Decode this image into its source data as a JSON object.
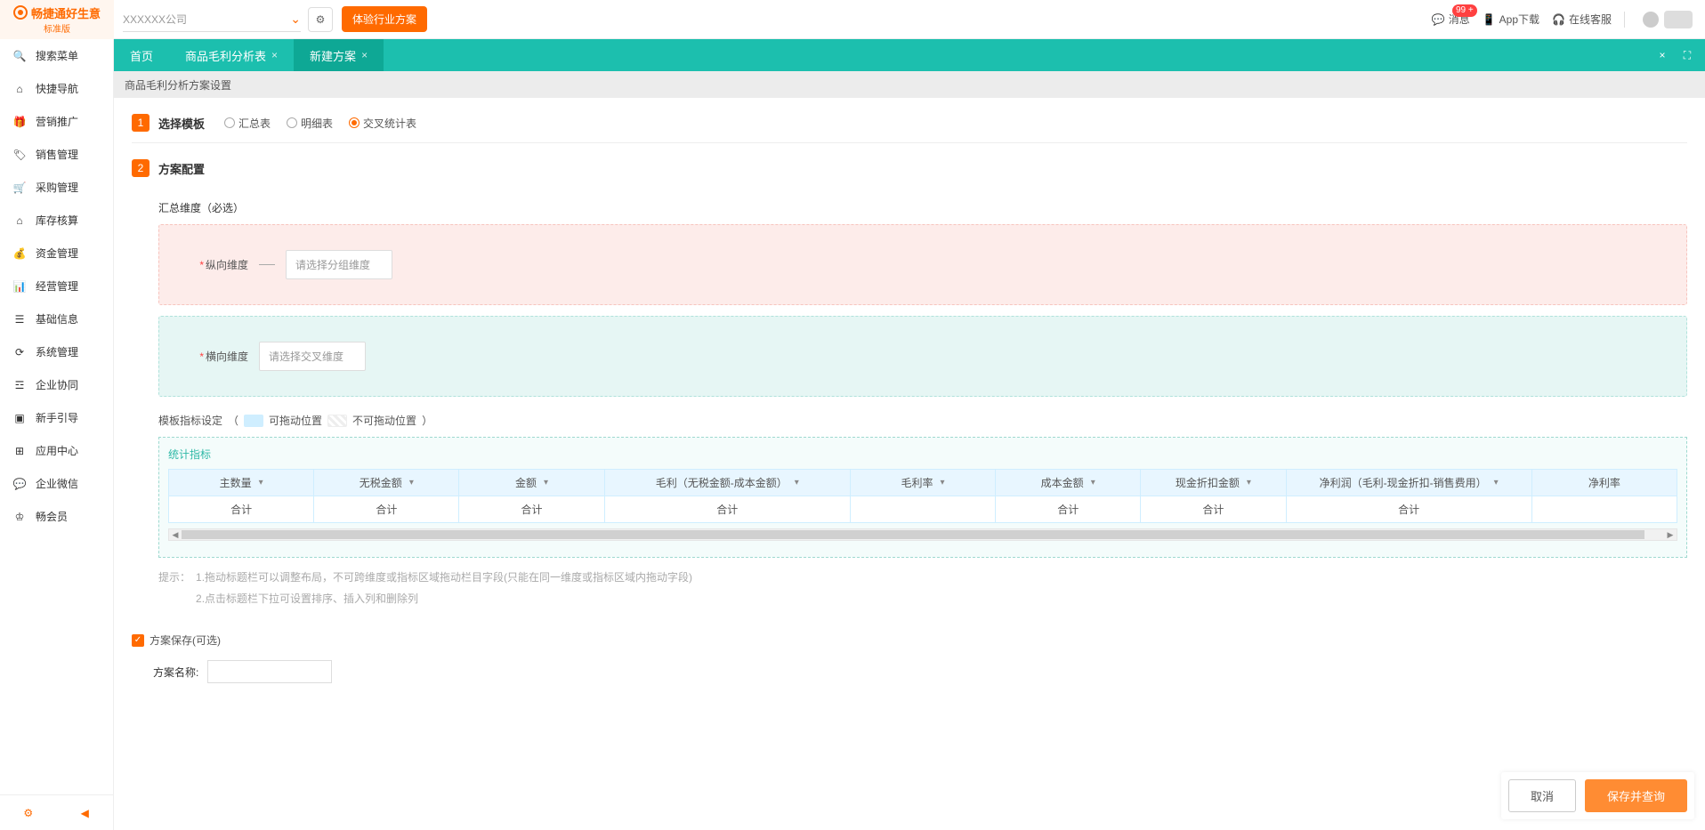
{
  "brand": {
    "name": "畅捷通好生意",
    "sub": "标准版"
  },
  "company": {
    "placeholder": "XXXXXX公司"
  },
  "header": {
    "exp_button": "体验行业方案",
    "msg": "消息",
    "msg_badge": "99 +",
    "download": "App下载",
    "support": "在线客服"
  },
  "sidebar": {
    "items": [
      "搜索菜单",
      "快捷导航",
      "营销推广",
      "销售管理",
      "采购管理",
      "库存核算",
      "资金管理",
      "经营管理",
      "基础信息",
      "系统管理",
      "企业协同",
      "新手引导",
      "应用中心",
      "企业微信",
      "畅会员"
    ]
  },
  "tabs": {
    "home": "首页",
    "t1": "商品毛利分析表",
    "t2": "新建方案"
  },
  "page": {
    "title": "商品毛利分析方案设置",
    "step1": {
      "num": "1",
      "label": "选择模板",
      "opts": [
        "汇总表",
        "明细表",
        "交叉统计表"
      ],
      "selected": 2
    },
    "step2": {
      "num": "2",
      "label": "方案配置"
    },
    "summary_dim_title": "汇总维度（必选）",
    "vdim": {
      "label": "纵向维度",
      "ph": "请选择分组维度"
    },
    "hdim": {
      "label": "横向维度",
      "ph": "请选择交叉维度"
    },
    "legend": {
      "label": "模板指标设定",
      "drag": "可拖动位置",
      "nodrag": "不可拖动位置"
    },
    "stats_title": "统计指标",
    "columns": [
      "主数量",
      "无税金额",
      "金额",
      "毛利（无税金额-成本金额）",
      "毛利率",
      "成本金额",
      "现金折扣金额",
      "净利润（毛利-现金折扣-销售费用）",
      "净利率"
    ],
    "sum_row": "合计",
    "tips_label": "提示：",
    "tip1": "1.拖动标题栏可以调整布局，不可跨维度或指标区域拖动栏目字段(只能在同一维度或指标区域内拖动字段)",
    "tip2": "2.点击标题栏下拉可设置排序、插入列和删除列",
    "save_opt": "方案保存(可选)",
    "plan_name_label": "方案名称:",
    "cancel": "取消",
    "confirm": "保存并查询"
  }
}
